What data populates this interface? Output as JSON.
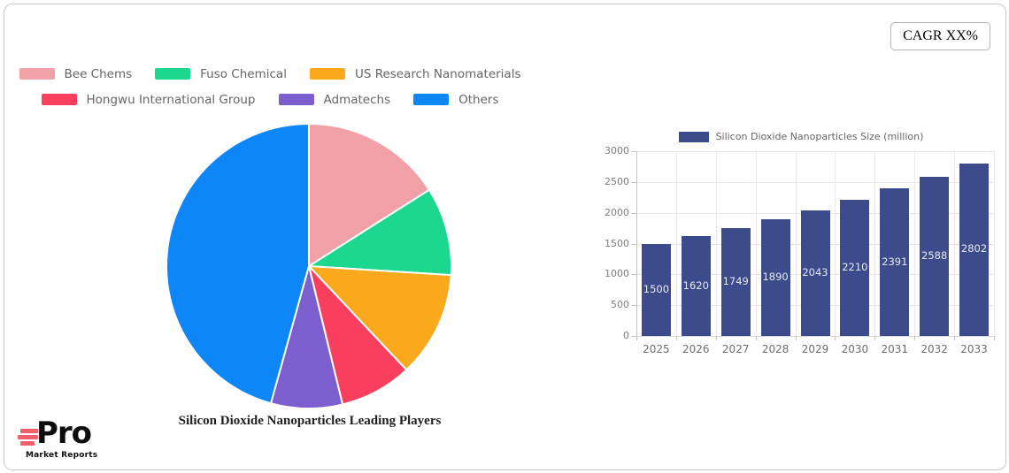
{
  "card": {
    "cagr_label": "CAGR XX%"
  },
  "logo": {
    "name": "Pro",
    "subtitle": "Market Reports"
  },
  "colors": {
    "pie": [
      "#f2a0a7",
      "#1cd78e",
      "#faa91c",
      "#fa3e5e",
      "#7d5ecf",
      "#0d86f7"
    ],
    "bar": "#3c4b8c",
    "legend_text": "#666666",
    "axis_text": "#7e7e7e"
  },
  "chart_data": [
    {
      "type": "pie",
      "title": "Silicon Dioxide Nanoparticles Leading Players",
      "labels": [
        "Bee Chems",
        "Fuso Chemical",
        "US Research Nanomaterials",
        "Hongwu International Group",
        "Admatechs",
        "Others"
      ],
      "values": [
        16,
        10,
        12,
        8.2,
        8.1,
        45.7
      ],
      "values_note": "share_percent_estimated_from_slice_angles",
      "colors": [
        "#f2a0a7",
        "#1cd78e",
        "#faa91c",
        "#fa3e5e",
        "#7d5ecf",
        "#0d86f7"
      ],
      "legend_position": "top",
      "legend_rows": [
        [
          "Bee Chems",
          "Fuso Chemical",
          "US Research Nanomaterials"
        ],
        [
          "Hongwu International Group",
          "Admatechs",
          "Others"
        ]
      ],
      "start_angle_deg": 0,
      "direction": "clockwise"
    },
    {
      "type": "bar",
      "legend": "Silicon Dioxide Nanoparticles Size (million)",
      "categories": [
        "2025",
        "2026",
        "2027",
        "2028",
        "2029",
        "2030",
        "2031",
        "2032",
        "2033"
      ],
      "values": [
        1500,
        1620,
        1749,
        1890,
        2043,
        2210,
        2391,
        2588,
        2802
      ],
      "ylim": [
        0,
        3000
      ],
      "yticks": [
        0,
        500,
        1000,
        1500,
        2000,
        2500,
        3000
      ],
      "bar_color": "#3c4b8c",
      "grid": true,
      "value_label_position": "inside-center",
      "legend_position": "top"
    }
  ]
}
